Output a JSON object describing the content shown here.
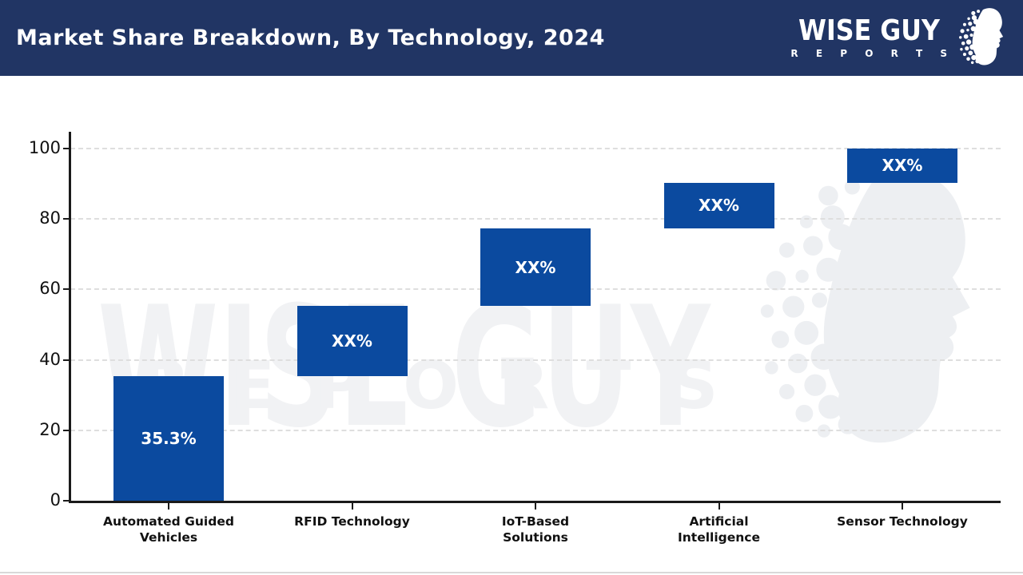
{
  "header": {
    "title": "Market Share Breakdown, By Technology, 2024",
    "logo": {
      "line1": "WISE GUY",
      "line2": "R E P O R T S"
    }
  },
  "watermark": {
    "line1": "WISE GUY",
    "line2": "REPORTS"
  },
  "chart_data": {
    "type": "bar",
    "subtype": "waterfall",
    "title": "Market Share Breakdown, By Technology, 2024",
    "categories": [
      "Automated Guided\nVehicles",
      "RFID Technology",
      "IoT-Based\nSolutions",
      "Artificial\nIntelligence",
      "Sensor Technology"
    ],
    "bars": [
      {
        "category": "Automated Guided Vehicles",
        "start": 0,
        "end": 35.3,
        "label": "35.3%"
      },
      {
        "category": "RFID Technology",
        "start": 35.3,
        "end": 55.3,
        "label": "XX%"
      },
      {
        "category": "IoT-Based Solutions",
        "start": 55.3,
        "end": 77.3,
        "label": "XX%"
      },
      {
        "category": "Artificial Intelligence",
        "start": 77.3,
        "end": 90.3,
        "label": "XX%"
      },
      {
        "category": "Sensor Technology",
        "start": 90.3,
        "end": 100,
        "label": "XX%"
      }
    ],
    "y_ticks": [
      0,
      20,
      40,
      60,
      80,
      100
    ],
    "ylim": [
      0,
      105
    ],
    "grid": "dashed-horizontal",
    "legend": "none",
    "xlabel": "",
    "ylabel": ""
  },
  "colors": {
    "header_bg": "#213564",
    "bar": "#0b4a9f",
    "bar_label": "#ffffff",
    "grid": "#dedede",
    "axis": "#1a1a1a",
    "watermark": "#f1f2f4",
    "watermark_face": "#edeff2"
  }
}
